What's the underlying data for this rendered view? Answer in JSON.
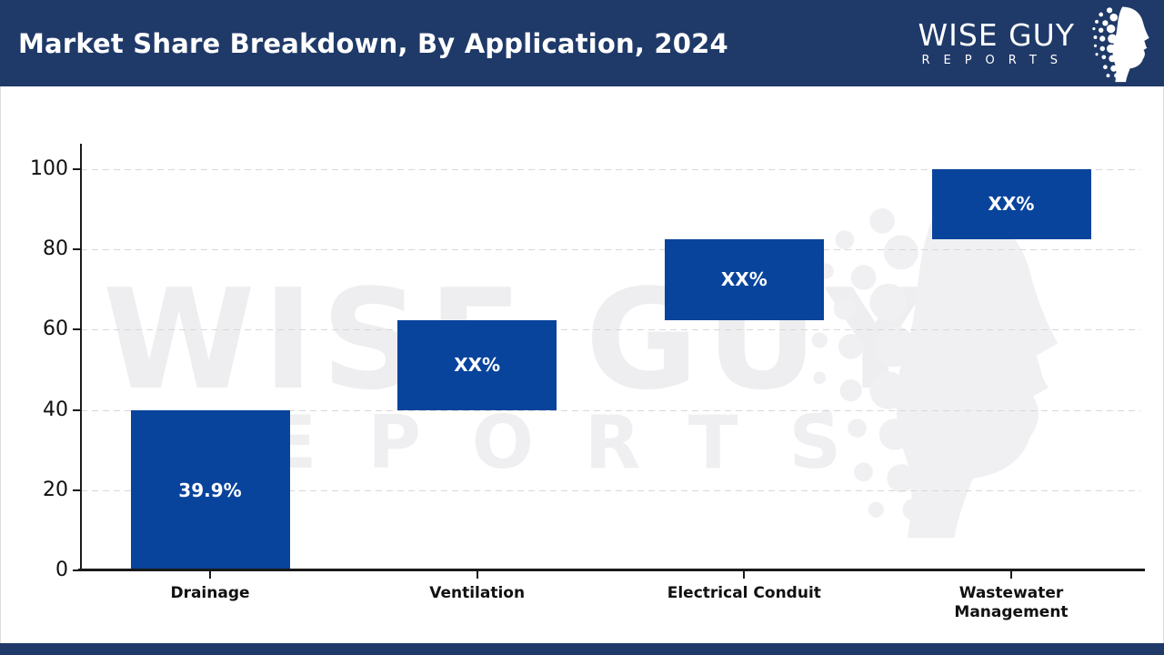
{
  "page": {
    "bg": "#ffffff",
    "edge_border_color": "#dcdcdc"
  },
  "header": {
    "bg": "#1f3a68",
    "title": "Market Share Breakdown, By Application, 2024",
    "brand": {
      "line1": "WISE GUY",
      "line2": "REPORTS"
    }
  },
  "footer": {
    "bg": "#1f3a68"
  },
  "watermark": {
    "line1": "WISE GUY",
    "line2": "REPORTS"
  },
  "chart_data": {
    "type": "bar",
    "variant": "floating-stacked-waterfall",
    "title": "Market Share Breakdown, By Application, 2024",
    "categories": [
      "Drainage",
      "Ventilation",
      "Electrical Conduit",
      "Wastewater Management"
    ],
    "segments": [
      {
        "category": "Drainage",
        "start": 0,
        "end": 39.9,
        "label": "39.9%"
      },
      {
        "category": "Ventilation",
        "start": 39.9,
        "end": 62.4,
        "label": "XX%"
      },
      {
        "category": "Electrical Conduit",
        "start": 62.4,
        "end": 82.6,
        "label": "XX%"
      },
      {
        "category": "Wastewater Management",
        "start": 82.6,
        "end": 100,
        "label": "XX%"
      }
    ],
    "y_ticks": [
      0,
      20,
      40,
      60,
      80,
      100
    ],
    "ylim": [
      0,
      100
    ],
    "xlabel": "",
    "ylabel": "",
    "grid": "horizontal-dashed",
    "legend": "none",
    "bar_color": "#08449c",
    "bar_label_color": "#ffffff",
    "axis_color": "#1a1a1a",
    "grid_color": "#d8d8d8",
    "tick_label_color": "#111111"
  }
}
